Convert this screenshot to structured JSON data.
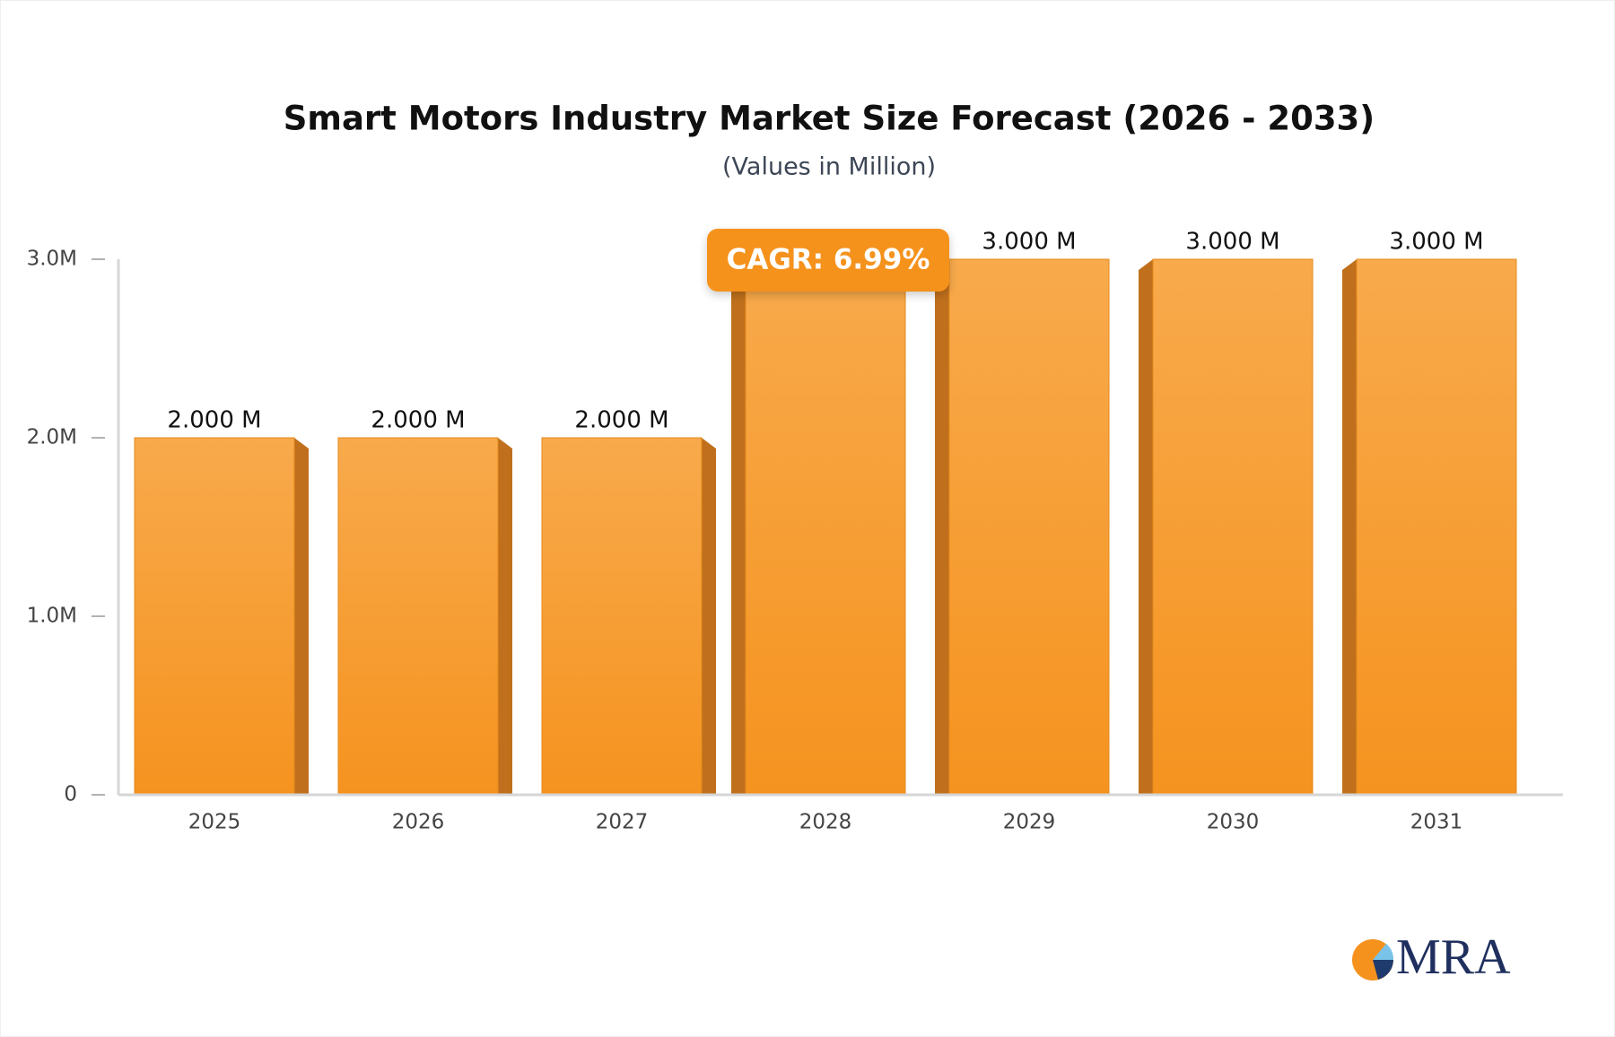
{
  "chart_data": {
    "type": "bar",
    "title": "Smart Motors Industry Market Size Forecast (2026 - 2033)",
    "subtitle": "(Values in Million)",
    "categories": [
      "2025",
      "2026",
      "2027",
      "2028",
      "2029",
      "2030",
      "2031"
    ],
    "values": [
      2000000,
      2000000,
      2000000,
      3000000,
      3000000,
      3000000,
      3000000
    ],
    "value_labels": [
      "2.000 M",
      "2.000 M",
      "2.000 M",
      null,
      "3.000 M",
      "3.000 M",
      "3.000 M"
    ],
    "color": "#f7a03c",
    "ylim": [
      0,
      3000000
    ],
    "yticks": [
      0,
      {
        "value": 1000000,
        "label": "1.0M"
      },
      {
        "value": 2000000,
        "label": "2.0M"
      },
      {
        "value": 3000000,
        "label": "3.0M"
      }
    ],
    "annotation": "CAGR: 6.99%",
    "logo": "MRA"
  }
}
